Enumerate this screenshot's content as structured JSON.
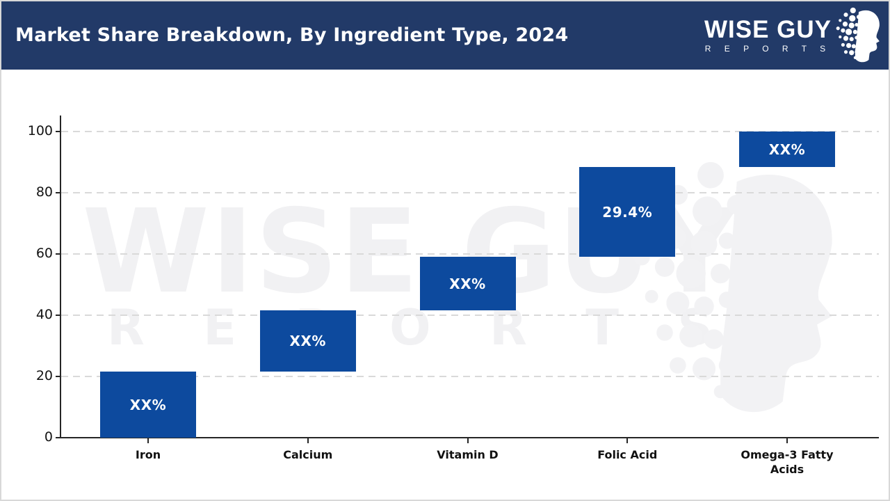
{
  "header": {
    "title": "Market Share Breakdown, By Ingredient Type, 2024",
    "brand": {
      "line1": "WISE GUY",
      "line2": "R E P O R T S"
    }
  },
  "watermark": {
    "line1": "WISE GUY",
    "line2": "R E P O R T S"
  },
  "colors": {
    "header_bg": "#223a68",
    "bar": "#0d4a9e",
    "bar_label": "#ffffff",
    "watermark": "#f1f1f3",
    "gridline": "#d9d9d9",
    "axis": "#262626",
    "page_border": "#d8d8d8"
  },
  "chart_data": {
    "type": "bar",
    "subtype": "waterfall-floating-bars",
    "title": "Market Share Breakdown, By Ingredient Type, 2024",
    "categories": [
      "Iron",
      "Calcium",
      "Vitamin D",
      "Folic Acid",
      "Omega-3 Fatty Acids"
    ],
    "segments": [
      {
        "category": "Iron",
        "start": 0,
        "end": 21.5,
        "label": "XX%"
      },
      {
        "category": "Calcium",
        "start": 21.5,
        "end": 41.5,
        "label": "XX%"
      },
      {
        "category": "Vitamin D",
        "start": 41.5,
        "end": 59.0,
        "label": "XX%"
      },
      {
        "category": "Folic Acid",
        "start": 59.0,
        "end": 88.4,
        "label": "29.4%"
      },
      {
        "category": "Omega-3 Fatty Acids",
        "start": 88.4,
        "end": 100,
        "label": "XX%"
      }
    ],
    "yticks": [
      0,
      20,
      40,
      60,
      80,
      100
    ],
    "ylim": [
      0,
      100
    ],
    "xlabel": "",
    "ylabel": "",
    "grid": "horizontal-dashed",
    "legend": "none",
    "bar_color": "#0d4a9e"
  }
}
